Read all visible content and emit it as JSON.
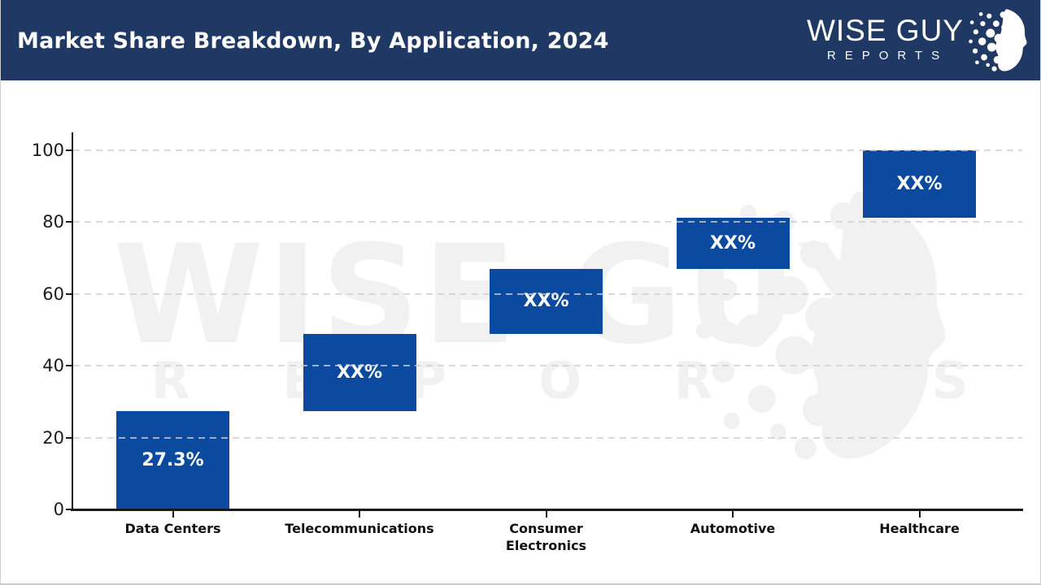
{
  "header": {
    "title": "Market Share Breakdown, By Application, 2024",
    "bg_color": "#1f3864",
    "text_color": "#ffffff",
    "logo": {
      "line1": "WISE GUY",
      "line2": "REPORTS"
    }
  },
  "watermark": {
    "line1": "WISE GUY",
    "line2": "R E P O R T S"
  },
  "chart_data": {
    "type": "bar",
    "subtype": "waterfall",
    "title": "Market Share Breakdown, By Application, 2024",
    "categories": [
      "Data Centers",
      "Telecommunications",
      "Consumer Electronics",
      "Automotive",
      "Healthcare"
    ],
    "segments": [
      {
        "category": "Data Centers",
        "start": 0,
        "end": 27.3,
        "label": "27.3%"
      },
      {
        "category": "Telecommunications",
        "start": 27.3,
        "end": 48.8,
        "label": "XX%"
      },
      {
        "category": "Consumer Electronics",
        "start": 48.8,
        "end": 66.9,
        "label": "XX%"
      },
      {
        "category": "Automotive",
        "start": 66.9,
        "end": 81.2,
        "label": "XX%"
      },
      {
        "category": "Healthcare",
        "start": 81.2,
        "end": 100,
        "label": "XX%"
      }
    ],
    "yticks": [
      0,
      20,
      40,
      60,
      80,
      100
    ],
    "ylim": [
      0,
      105
    ],
    "xlabel": "",
    "ylabel": "",
    "bar_color": "#0b4a9f",
    "bar_label_color": "#ffffff",
    "grid": "horizontal-dashed",
    "grid_color": "#d6d6d6",
    "legend": "none"
  }
}
